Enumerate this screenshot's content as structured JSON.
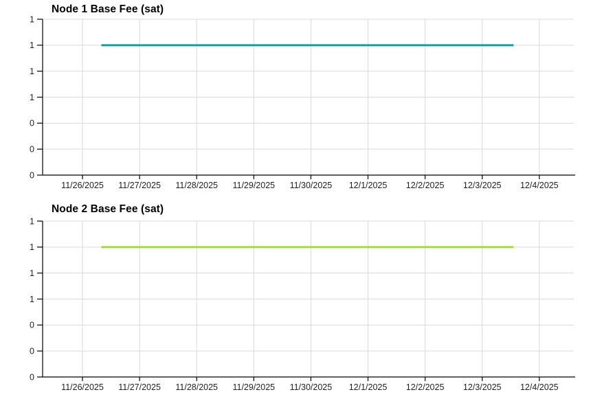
{
  "page": {
    "background": "#ffffff",
    "grid_color": "#d9d9d9",
    "axis_color": "#000000",
    "label_color": "#1f1f1f"
  },
  "chart_data": [
    {
      "type": "line",
      "title": "Node 1 Base Fee (sat)",
      "xlabel": "",
      "ylabel": "",
      "grid": true,
      "legend": "none",
      "x_axis": {
        "type": "datetime",
        "tick_labels": [
          "11/26/2025",
          "11/27/2025",
          "11/28/2025",
          "11/29/2025",
          "11/30/2025",
          "12/1/2025",
          "12/2/2025",
          "12/3/2025",
          "12/4/2025"
        ]
      },
      "y_axis": {
        "range": [
          0,
          1.2
        ],
        "ticks": [
          1.2,
          1.0,
          0.8,
          0.6,
          0.4,
          0.2,
          0
        ],
        "tick_labels": [
          "1",
          "1",
          "1",
          "1",
          "0",
          "0",
          "0"
        ]
      },
      "series": [
        {
          "name": "Node 1 Base Fee (sat)",
          "color": "#1a9ba1",
          "shape": "constant-line",
          "value": 1,
          "start": {
            "date": "11/26/2025",
            "day_fraction": 0.33
          },
          "end": {
            "date": "12/3/2025",
            "day_fraction": 0.55
          }
        }
      ]
    },
    {
      "type": "line",
      "title": "Node 2 Base Fee (sat)",
      "xlabel": "",
      "ylabel": "",
      "grid": true,
      "legend": "none",
      "x_axis": {
        "type": "datetime",
        "tick_labels": [
          "11/26/2025",
          "11/27/2025",
          "11/28/2025",
          "11/29/2025",
          "11/30/2025",
          "12/1/2025",
          "12/2/2025",
          "12/3/2025",
          "12/4/2025"
        ]
      },
      "y_axis": {
        "range": [
          0,
          1.2
        ],
        "ticks": [
          1.2,
          1.0,
          0.8,
          0.6,
          0.4,
          0.2,
          0
        ],
        "tick_labels": [
          "1",
          "1",
          "1",
          "1",
          "0",
          "0",
          "0"
        ]
      },
      "series": [
        {
          "name": "Node 2 Base Fee (sat)",
          "color": "#a5d941",
          "shape": "constant-line",
          "value": 1,
          "start": {
            "date": "11/26/2025",
            "day_fraction": 0.33
          },
          "end": {
            "date": "12/3/2025",
            "day_fraction": 0.55
          }
        }
      ]
    }
  ]
}
